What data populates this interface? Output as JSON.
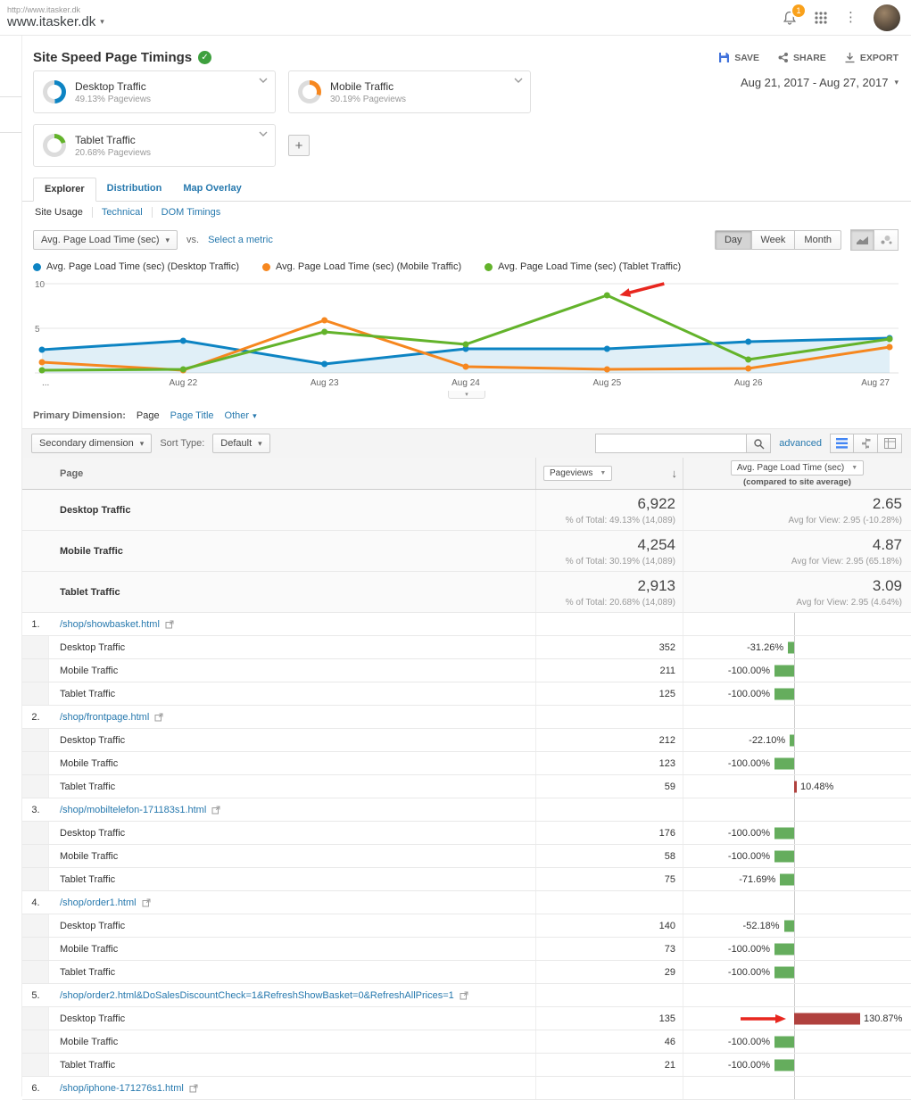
{
  "chrome": {
    "url_label": "http://www.itasker.dk",
    "account_name": "www.itasker.dk",
    "notification_count": "1"
  },
  "report": {
    "title": "Site Speed Page Timings",
    "save_label": "SAVE",
    "share_label": "SHARE",
    "export_label": "EXPORT",
    "date_range": "Aug 21, 2017 - Aug 27, 2017"
  },
  "segments": [
    {
      "name": "Desktop Traffic",
      "detail": "49.13% Pageviews",
      "pct": 49.13,
      "color": "#0d84c3"
    },
    {
      "name": "Mobile Traffic",
      "detail": "30.19% Pageviews",
      "pct": 30.19,
      "color": "#f6871f"
    },
    {
      "name": "Tablet Traffic",
      "detail": "20.68% Pageviews",
      "pct": 20.68,
      "color": "#63b32b"
    }
  ],
  "tabs": [
    {
      "label": "Explorer",
      "active": true
    },
    {
      "label": "Distribution",
      "active": false
    },
    {
      "label": "Map Overlay",
      "active": false
    }
  ],
  "subtabs": [
    {
      "label": "Site Usage",
      "active": true
    },
    {
      "label": "Technical",
      "active": false
    },
    {
      "label": "DOM Timings",
      "active": false
    }
  ],
  "metric_bar": {
    "metric_selector": "Avg. Page Load Time (sec)",
    "vs_label": "vs.",
    "select_metric": "Select a metric",
    "granularity": [
      "Day",
      "Week",
      "Month"
    ],
    "granularity_active": "Day"
  },
  "chart_data": {
    "type": "line",
    "x": [
      "...",
      "Aug 22",
      "Aug 23",
      "Aug 24",
      "Aug 25",
      "Aug 26",
      "Aug 27"
    ],
    "ylim": [
      0,
      10
    ],
    "yticks": [
      5,
      10
    ],
    "series": [
      {
        "name": "Avg. Page Load Time (sec) (Desktop Traffic)",
        "color": "#0d84c3",
        "area": true,
        "values": [
          2.6,
          3.6,
          1.0,
          2.7,
          2.7,
          3.5,
          3.9
        ]
      },
      {
        "name": "Avg. Page Load Time (sec) (Mobile Traffic)",
        "color": "#f6871f",
        "area": false,
        "values": [
          1.2,
          0.3,
          5.9,
          0.7,
          0.4,
          0.5,
          2.9
        ]
      },
      {
        "name": "Avg. Page Load Time (sec) (Tablet Traffic)",
        "color": "#63b32b",
        "area": false,
        "values": [
          0.3,
          0.4,
          4.6,
          3.2,
          8.7,
          1.5,
          3.8
        ]
      }
    ],
    "annotation": "red arrow pointing at Tablet Traffic peak on Aug 25"
  },
  "dimension_bar": {
    "label": "Primary Dimension:",
    "active": "Page",
    "links": [
      "Page Title",
      "Other"
    ]
  },
  "toolbar": {
    "secondary_dimension": "Secondary dimension",
    "sort_type_label": "Sort Type:",
    "sort_type_value": "Default",
    "search_value": "",
    "advanced_label": "advanced"
  },
  "table": {
    "headers": {
      "page": "Page",
      "pageviews": "Pageviews",
      "metric": "Avg. Page Load Time (sec)",
      "metric_note": "(compared to site average)"
    },
    "summary_rows": [
      {
        "label": "Desktop Traffic",
        "pageviews": "6,922",
        "pageviews_note": "% of Total: 49.13% (14,089)",
        "metric": "2.65",
        "metric_note": "Avg for View: 2.95 (-10.28%)"
      },
      {
        "label": "Mobile Traffic",
        "pageviews": "4,254",
        "pageviews_note": "% of Total: 30.19% (14,089)",
        "metric": "4.87",
        "metric_note": "Avg for View: 2.95 (65.18%)"
      },
      {
        "label": "Tablet Traffic",
        "pageviews": "2,913",
        "pageviews_note": "% of Total: 20.68% (14,089)",
        "metric": "3.09",
        "metric_note": "Avg for View: 2.95 (4.64%)"
      }
    ],
    "groups": [
      {
        "index": "1.",
        "page": "/shop/showbasket.html",
        "rows": [
          {
            "label": "Desktop Traffic",
            "pageviews": "352",
            "delta_pct": -31.26,
            "delta_label": "-31.26%"
          },
          {
            "label": "Mobile Traffic",
            "pageviews": "211",
            "delta_pct": -100,
            "delta_label": "-100.00%"
          },
          {
            "label": "Tablet Traffic",
            "pageviews": "125",
            "delta_pct": -100,
            "delta_label": "-100.00%"
          }
        ]
      },
      {
        "index": "2.",
        "page": "/shop/frontpage.html",
        "rows": [
          {
            "label": "Desktop Traffic",
            "pageviews": "212",
            "delta_pct": -22.1,
            "delta_label": "-22.10%"
          },
          {
            "label": "Mobile Traffic",
            "pageviews": "123",
            "delta_pct": -100,
            "delta_label": "-100.00%"
          },
          {
            "label": "Tablet Traffic",
            "pageviews": "59",
            "delta_pct": 10.48,
            "delta_label": "10.48%"
          }
        ]
      },
      {
        "index": "3.",
        "page": "/shop/mobiltelefon-171183s1.html",
        "rows": [
          {
            "label": "Desktop Traffic",
            "pageviews": "176",
            "delta_pct": -100,
            "delta_label": "-100.00%"
          },
          {
            "label": "Mobile Traffic",
            "pageviews": "58",
            "delta_pct": -100,
            "delta_label": "-100.00%"
          },
          {
            "label": "Tablet Traffic",
            "pageviews": "75",
            "delta_pct": -71.69,
            "delta_label": "-71.69%"
          }
        ]
      },
      {
        "index": "4.",
        "page": "/shop/order1.html",
        "rows": [
          {
            "label": "Desktop Traffic",
            "pageviews": "140",
            "delta_pct": -52.18,
            "delta_label": "-52.18%"
          },
          {
            "label": "Mobile Traffic",
            "pageviews": "73",
            "delta_pct": -100,
            "delta_label": "-100.00%"
          },
          {
            "label": "Tablet Traffic",
            "pageviews": "29",
            "delta_pct": -100,
            "delta_label": "-100.00%"
          }
        ]
      },
      {
        "index": "5.",
        "page": "/shop/order2.html&DoSalesDiscountCheck=1&RefreshShowBasket=0&RefreshAllPrices=1",
        "rows": [
          {
            "label": "Desktop Traffic",
            "pageviews": "135",
            "delta_pct": 130.87,
            "delta_label": "130.87%",
            "arrow": true
          },
          {
            "label": "Mobile Traffic",
            "pageviews": "46",
            "delta_pct": -100,
            "delta_label": "-100.00%"
          },
          {
            "label": "Tablet Traffic",
            "pageviews": "21",
            "delta_pct": -100,
            "delta_label": "-100.00%"
          }
        ]
      },
      {
        "index": "6.",
        "page": "/shop/iphone-171276s1.html",
        "rows": []
      }
    ]
  },
  "icons": {
    "caret_down": "▾",
    "select_arrow": "▼",
    "sort_desc": "↓",
    "plus": "+",
    "check": "✓",
    "kebab": "⋮"
  },
  "colors": {
    "desktop": "#0d84c3",
    "mobile": "#f6871f",
    "tablet": "#63b32b",
    "positive_bar": "#b0413e",
    "negative_bar": "#65ad5d",
    "link": "#2779ae",
    "annotation": "#e8271f"
  }
}
